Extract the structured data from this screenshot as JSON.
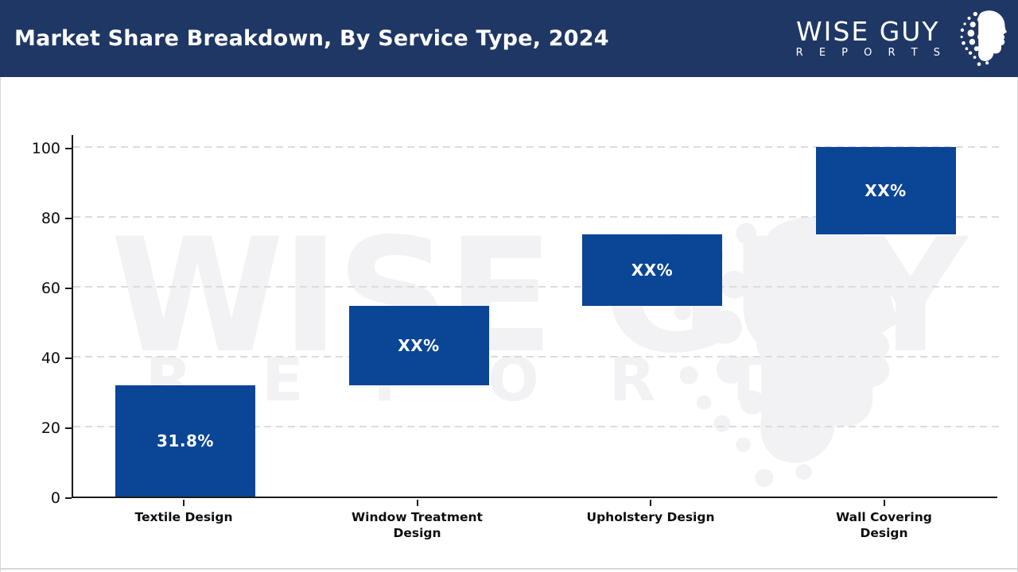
{
  "header": {
    "title": "Market Share Breakdown, By Service Type, 2024",
    "bg_color": "#1f3764",
    "logo": {
      "line1": "WISE GUY",
      "line2": "R E P O R T S"
    }
  },
  "watermark": {
    "line1": "WISE GUY",
    "line2": "REPORTS"
  },
  "chart_data": {
    "type": "bar",
    "subtype": "floating-waterfall",
    "title": "Market Share Breakdown, By Service Type, 2024",
    "xlabel": "",
    "ylabel": "",
    "ylim": [
      0,
      100
    ],
    "yticks": [
      0,
      20,
      40,
      60,
      80,
      100
    ],
    "grid": "horizontal-dashed",
    "legend": "none",
    "bar_color": "#0a4596",
    "value_label_color": "#ffffff",
    "categories": [
      "Textile Design",
      "Window Treatment Design",
      "Upholstery Design",
      "Wall Covering Design"
    ],
    "category_lines": [
      [
        "Textile Design"
      ],
      [
        "Window Treatment",
        "Design"
      ],
      [
        "Upholstery Design"
      ],
      [
        "Wall Covering",
        "Design"
      ]
    ],
    "series": [
      {
        "name": "Market Share",
        "segments": [
          {
            "category": "Textile Design",
            "start": 0,
            "end": 31.8,
            "label": "31.8%"
          },
          {
            "category": "Window Treatment Design",
            "start": 31.8,
            "end": 54.5,
            "label": "XX%"
          },
          {
            "category": "Upholstery Design",
            "start": 54.5,
            "end": 75.0,
            "label": "XX%"
          },
          {
            "category": "Wall Covering Design",
            "start": 75.0,
            "end": 100.0,
            "label": "XX%"
          }
        ]
      }
    ]
  }
}
